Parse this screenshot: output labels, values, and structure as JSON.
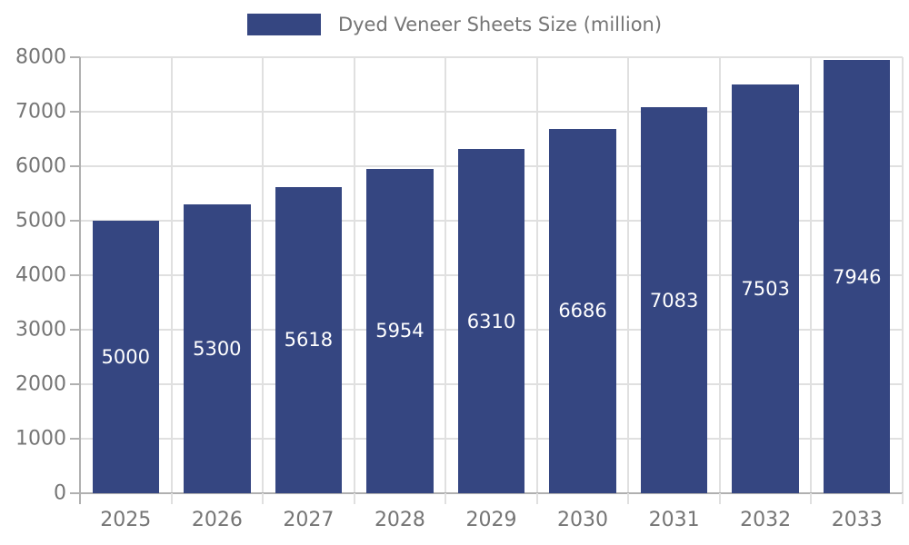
{
  "legend": {
    "label": "Dyed Veneer Sheets Size (million)"
  },
  "colors": {
    "bar": "#354681",
    "axis": "#b0b0b0",
    "grid": "#e0e0e0",
    "tick_label": "#757575",
    "legend_label": "#757575",
    "bar_label": "#ffffff",
    "background": "#ffffff"
  },
  "chart_data": {
    "type": "bar",
    "title": "Dyed Veneer Sheets Size (million)",
    "categories": [
      "2025",
      "2026",
      "2027",
      "2028",
      "2029",
      "2030",
      "2031",
      "2032",
      "2033"
    ],
    "values": [
      5000,
      5300,
      5618,
      5954,
      6310,
      6686,
      7083,
      7503,
      7946
    ],
    "bar_value_labels": [
      "5000",
      "5300",
      "5618",
      "5954",
      "6310",
      "6686",
      "7083",
      "7503",
      "7946"
    ],
    "value_labels_inside_bars": true,
    "xlabel": "",
    "ylabel": "",
    "ylim": [
      0,
      8000
    ],
    "yticks": [
      0,
      1000,
      2000,
      3000,
      4000,
      5000,
      6000,
      7000,
      8000
    ],
    "ytick_labels": [
      "0",
      "1000",
      "2000",
      "3000",
      "4000",
      "5000",
      "6000",
      "7000",
      "8000"
    ],
    "grid": true,
    "legend_position": "top-center"
  }
}
